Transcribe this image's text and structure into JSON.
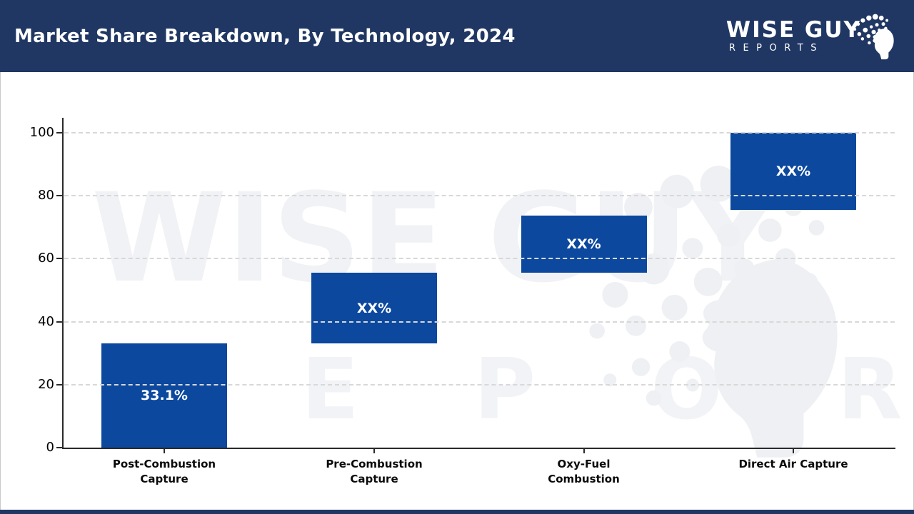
{
  "header": {
    "title": "Market Share Breakdown, By Technology, 2024",
    "logo": {
      "name": "WISE GUY",
      "sub": "REPORTS"
    }
  },
  "watermark": {
    "line1": "WISE GUY",
    "line2": "R E P O R T S"
  },
  "colors": {
    "header_bg": "#203763",
    "footer_bg": "#203763",
    "bar": "#0b489e",
    "bar_label": "#ffffff",
    "grid": "#d8d8d8",
    "axis": "#2a2a2a",
    "tick_label": "#000000",
    "watermark": "#f1f2f5"
  },
  "chart_data": {
    "type": "bar",
    "subtype": "floating-waterfall",
    "title": "Market Share Breakdown, By Technology, 2024",
    "categories": [
      "Post-Combustion Capture",
      "Pre-Combustion Capture",
      "Oxy-Fuel Combustion",
      "Direct Air Capture"
    ],
    "category_lines": [
      [
        "Post-Combustion",
        "Capture"
      ],
      [
        "Pre-Combustion",
        "Capture"
      ],
      [
        "Oxy-Fuel",
        "Combustion"
      ],
      [
        "Direct Air Capture"
      ]
    ],
    "bar_labels": [
      "33.1%",
      "XX%",
      "XX%",
      "XX%"
    ],
    "segments": [
      [
        0,
        33.1
      ],
      [
        33.1,
        55.5
      ],
      [
        55.5,
        73.7
      ],
      [
        75.5,
        100
      ]
    ],
    "yticks": [
      0,
      20,
      40,
      60,
      80,
      100
    ],
    "ylim": [
      0,
      100
    ],
    "grid": "horizontal dashed",
    "legend": "none"
  }
}
